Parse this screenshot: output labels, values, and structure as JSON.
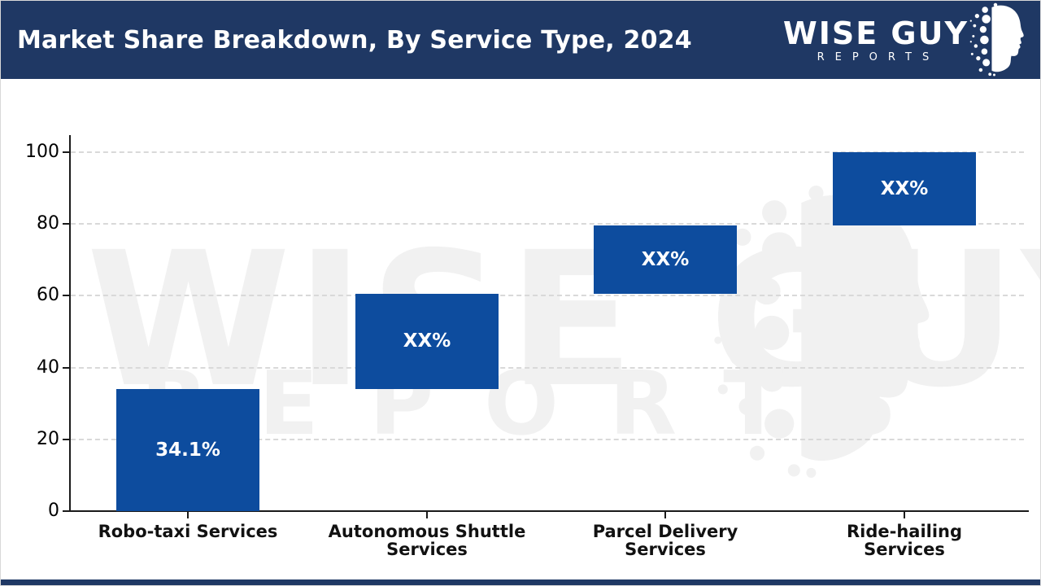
{
  "header": {
    "title": "Market Share Breakdown, By Service Type, 2024",
    "logo": {
      "line1": "WISE GUY",
      "line2": "REPORTS"
    }
  },
  "watermark": {
    "line1": "WISE GUY",
    "line2": "REPORTS"
  },
  "colors": {
    "background": "#ffffff",
    "header_bg": "#1f3864",
    "header_text": "#ffffff",
    "footer_bg": "#1f3864",
    "bar": "#0d4c9e",
    "bar_label": "#ffffff",
    "grid": "#d9d9d9",
    "axis": "#1a1a1a",
    "tick_text": "#000000",
    "category_text": "#111111",
    "watermark": "#f1f1f1"
  },
  "chart_data": {
    "type": "bar",
    "subtype": "waterfall",
    "title": "Market Share Breakdown, By Service Type, 2024",
    "unit": "percent",
    "ylim": [
      0,
      100
    ],
    "yticks": [
      0,
      20,
      40,
      60,
      80,
      100
    ],
    "grid": true,
    "categories": [
      "Robo-taxi Services",
      "Autonomous Shuttle Services",
      "Parcel Delivery Services",
      "Ride-hailing Services"
    ],
    "bars": [
      {
        "category": "Robo-taxi Services",
        "label_lines": [
          "Robo-taxi Services"
        ],
        "start": 0,
        "end": 34.1,
        "value_label": "34.1%"
      },
      {
        "category": "Autonomous Shuttle Services",
        "label_lines": [
          "Autonomous Shuttle",
          "Services"
        ],
        "start": 34.1,
        "end": 60.5,
        "value_label": "XX%"
      },
      {
        "category": "Parcel Delivery Services",
        "label_lines": [
          "Parcel Delivery",
          "Services"
        ],
        "start": 60.5,
        "end": 79.5,
        "value_label": "XX%"
      },
      {
        "category": "Ride-hailing Services",
        "label_lines": [
          "Ride-hailing",
          "Services"
        ],
        "start": 79.5,
        "end": 100,
        "value_label": "XX%"
      }
    ]
  }
}
